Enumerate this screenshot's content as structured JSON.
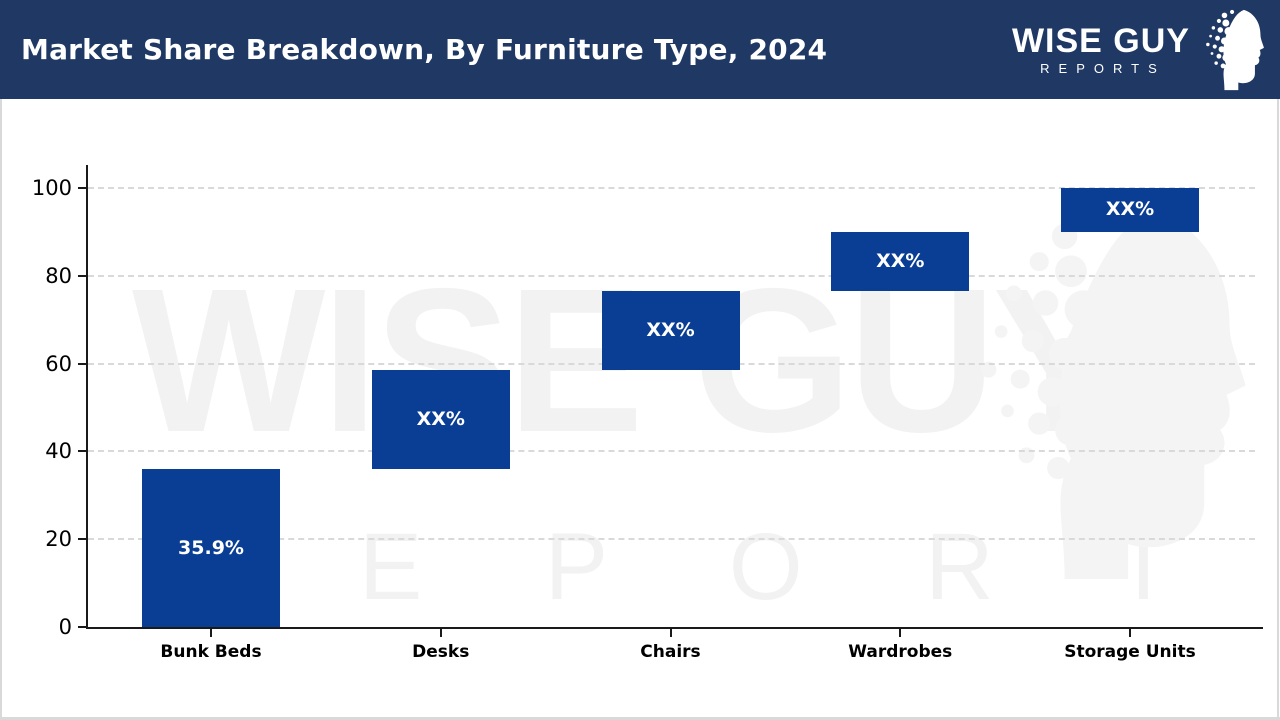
{
  "header": {
    "title": "Market Share Breakdown, By Furniture Type, 2024",
    "logo": {
      "wordmark": "WISE GUY",
      "sub": "REPORTS"
    },
    "bg_color": "#1f3864"
  },
  "watermark": {
    "wordmark": "WISE GUY",
    "sub": "R E P O R T S"
  },
  "colors": {
    "header_bg": "#1f3864",
    "bar": "#0a3e94",
    "bar_label": "#ffffff",
    "grid": "#d9d9d9",
    "axis": "#1a1a1a",
    "watermark": "#f2f2f2",
    "frame": "#d9d9d9"
  },
  "chart_data": {
    "type": "bar",
    "subtype": "waterfall",
    "title": "Market Share Breakdown, By Furniture Type, 2024",
    "categories": [
      "Bunk Beds",
      "Desks",
      "Chairs",
      "Wardrobes",
      "Storage Units"
    ],
    "series": [
      {
        "category": "Bunk Beds",
        "start": 0,
        "end": 35.9,
        "label": "35.9%"
      },
      {
        "category": "Desks",
        "start": 35.9,
        "end": 58.5,
        "label": "XX%"
      },
      {
        "category": "Chairs",
        "start": 58.5,
        "end": 76.5,
        "label": "XX%"
      },
      {
        "category": "Wardrobes",
        "start": 76.5,
        "end": 90.0,
        "label": "XX%"
      },
      {
        "category": "Storage Units",
        "start": 90.0,
        "end": 100.0,
        "label": "XX%"
      }
    ],
    "yticks": [
      0,
      20,
      40,
      60,
      80,
      100
    ],
    "ylim": [
      0,
      105
    ],
    "xlabel": "",
    "ylabel": "",
    "grid": "horizontal-dashed",
    "legend": "none",
    "bar_color": "#0a3e94",
    "bar_label_color": "#ffffff"
  }
}
